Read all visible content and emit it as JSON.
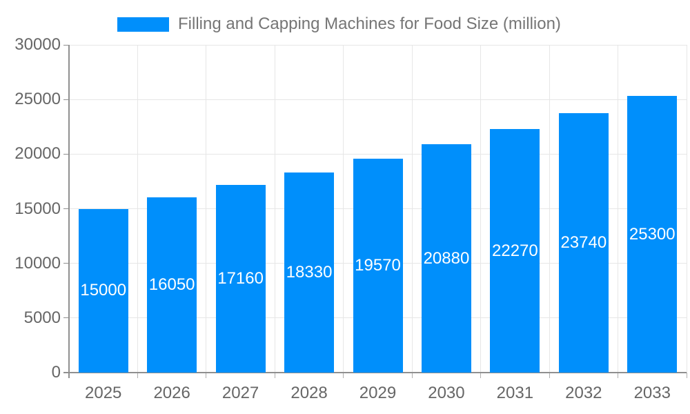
{
  "chart_data": {
    "type": "bar",
    "title": "Filling and Capping Machines for Food Size (million)",
    "categories": [
      "2025",
      "2026",
      "2027",
      "2028",
      "2029",
      "2030",
      "2031",
      "2032",
      "2033"
    ],
    "values": [
      15000,
      16050,
      17160,
      18330,
      19570,
      20880,
      22270,
      23740,
      25300
    ],
    "xlabel": "",
    "ylabel": "",
    "ylim": [
      0,
      30000
    ],
    "yticks": [
      0,
      5000,
      10000,
      15000,
      20000,
      25000,
      30000
    ],
    "legend_position": "top",
    "grid": true,
    "value_labels": "inside-center",
    "colors": {
      "bar": "#008FFB",
      "bar_label_text": "#ffffff",
      "legend_text": "#757575",
      "axis_text": "#666666",
      "gridline": "#e6e6e6",
      "axis_line": "#8f8f8f",
      "tick": "#b0b0b0",
      "background": "#ffffff"
    }
  }
}
